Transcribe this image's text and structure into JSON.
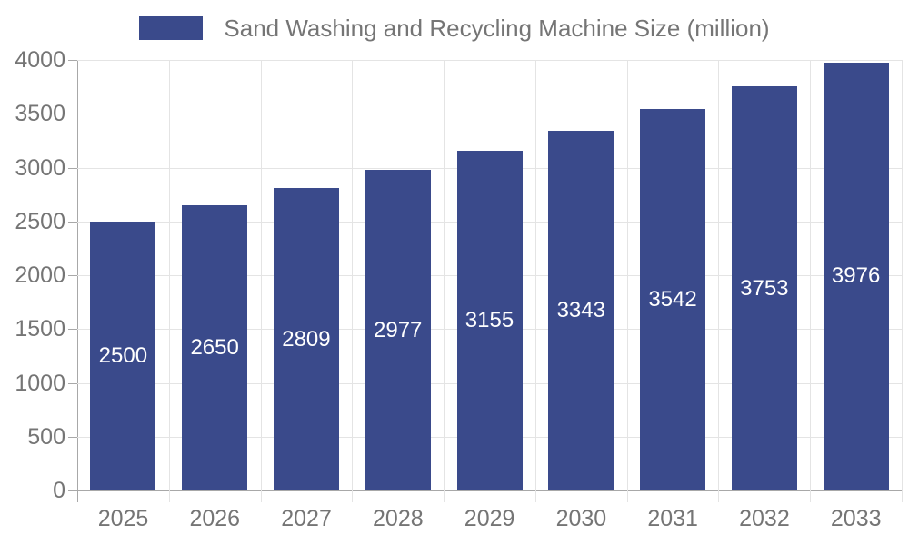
{
  "chart_data": {
    "type": "bar",
    "title": "Sand Washing and Recycling Machine Size (million)",
    "legend": [
      "Sand Washing and Recycling Machine Size (million)"
    ],
    "legend_position": "top",
    "categories": [
      "2025",
      "2026",
      "2027",
      "2028",
      "2029",
      "2030",
      "2031",
      "2032",
      "2033"
    ],
    "series": [
      {
        "name": "Sand Washing and Recycling Machine Size (million)",
        "values": [
          2500,
          2650,
          2809,
          2977,
          3155,
          3343,
          3542,
          3753,
          3976
        ]
      }
    ],
    "xlabel": "",
    "ylabel": "",
    "ylim": [
      0,
      4000
    ],
    "yticks": [
      0,
      500,
      1000,
      1500,
      2000,
      2500,
      3000,
      3500,
      4000
    ],
    "grid": true,
    "colors": {
      "bar_fill": "#3a4a8b",
      "bar_label_text": "#ffffff",
      "axis_text": "#757575",
      "legend_text": "#757575",
      "grid_line": "#e4e4e4",
      "axis_line": "#a8a8a8",
      "background": "#ffffff"
    }
  }
}
